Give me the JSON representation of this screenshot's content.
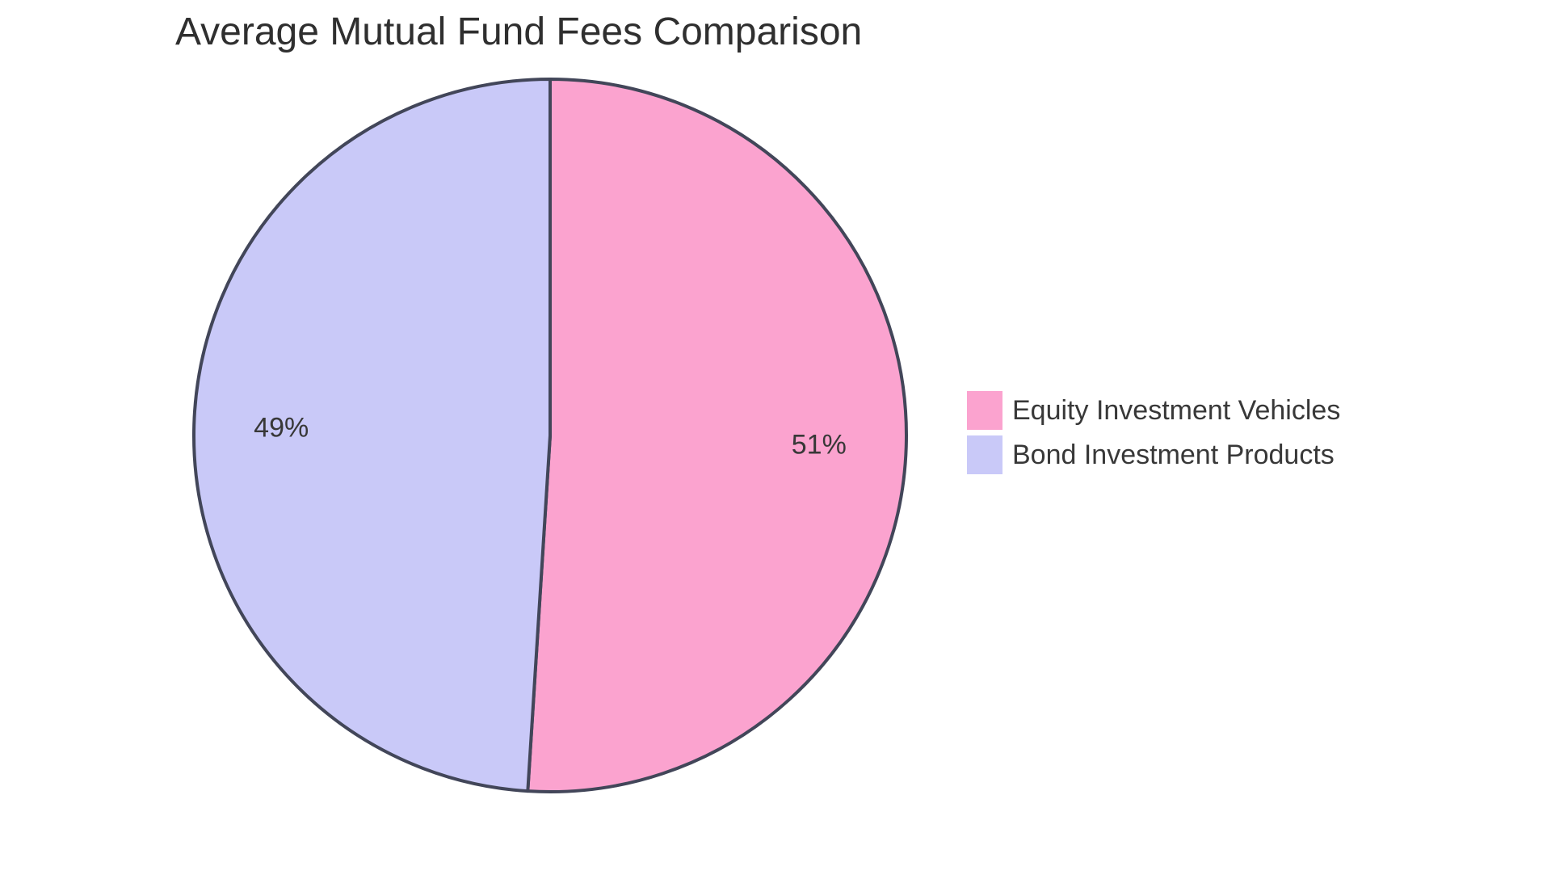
{
  "page": {
    "background": "#FFFFFF"
  },
  "chart_data": {
    "type": "pie",
    "title": "Average Mutual Fund Fees Comparison",
    "labels": [
      "Equity Investment Vehicles",
      "Bond Investment Products"
    ],
    "values": [
      51,
      49
    ],
    "value_labels": [
      "51%",
      "49%"
    ],
    "colors": [
      "#FBA3CF",
      "#C9C9F8"
    ],
    "border_color": "#424659",
    "title_color": "#2F2F2F",
    "label_color": "#383838",
    "legend_position": "right",
    "start_angle": "top",
    "direction": "clockwise",
    "grid": false
  }
}
